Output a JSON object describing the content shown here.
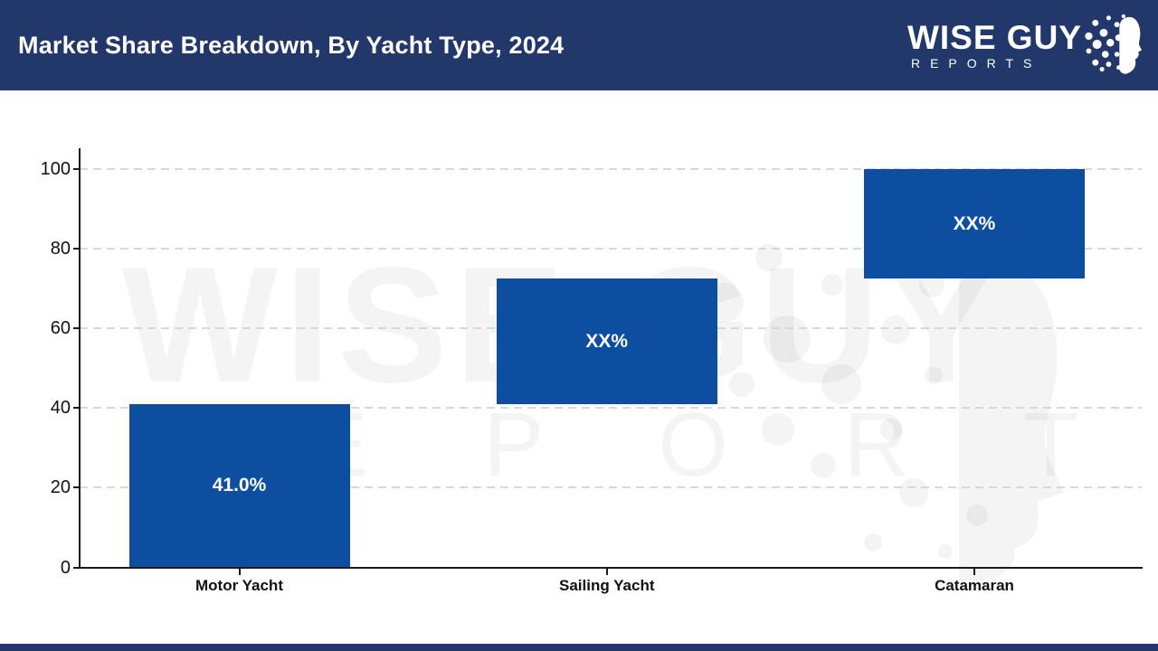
{
  "header": {
    "title": "Market Share Breakdown, By Yacht Type, 2024",
    "logo": {
      "line1": "WISE GUY",
      "line2": "REPORTS"
    }
  },
  "watermark": {
    "line1": "WISE GUY",
    "line2": "R E P O R T S"
  },
  "colors": {
    "header_bg": "#22386B",
    "bar": "#0D4EA1",
    "grid": "#D8D8D8",
    "axis": "#1A1A1A",
    "value_label": "#FFFFFF"
  },
  "chart_data": {
    "type": "bar",
    "subtype": "waterfall-floating-bars",
    "title": "Market Share Breakdown, By Yacht Type, 2024",
    "categories": [
      "Motor Yacht",
      "Sailing Yacht",
      "Catamaran"
    ],
    "bars": [
      {
        "category": "Motor Yacht",
        "start": 0,
        "end": 41,
        "label": "41.0%"
      },
      {
        "category": "Sailing Yacht",
        "start": 41,
        "end": 72.5,
        "label": "XX%"
      },
      {
        "category": "Catamaran",
        "start": 72.5,
        "end": 100,
        "label": "XX%"
      }
    ],
    "y_ticks": [
      0,
      20,
      40,
      60,
      80,
      100
    ],
    "ylim": [
      0,
      105
    ],
    "xlabel": "",
    "ylabel": "",
    "grid": "dashed-horizontal",
    "legend": "none",
    "bar_color": "#0D4EA1"
  }
}
